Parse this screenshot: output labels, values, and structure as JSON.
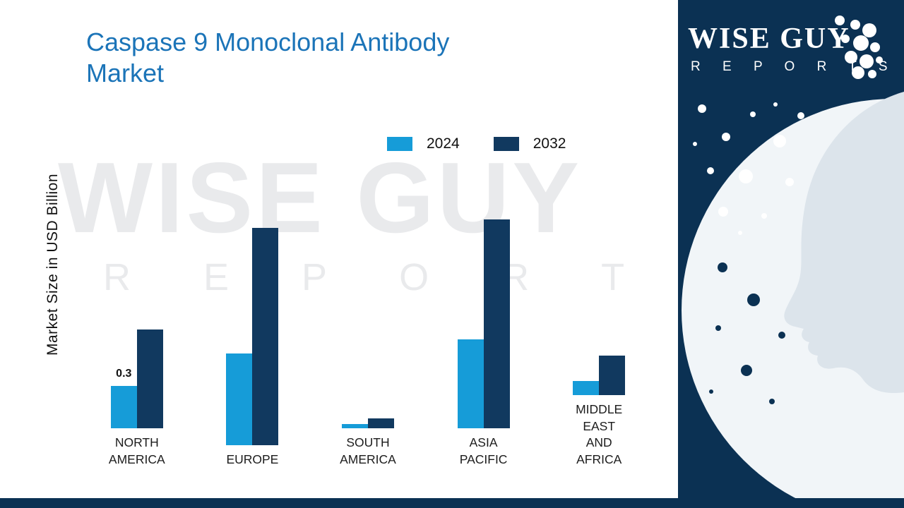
{
  "title": "Caspase 9 Monoclonal Antibody Market",
  "ylabel": "Market Size in USD Billion",
  "watermark": {
    "line1": "WISE GUY",
    "line2": "R E P O R T S"
  },
  "logo": {
    "line1": "WISE GUY",
    "line2": "R E P O R T S"
  },
  "colors": {
    "title_blue": "#1b74b8",
    "bar_2024": "#169cd8",
    "bar_2032": "#11395f",
    "brand_panel_navy": "#0b3153",
    "bottom_strip_navy": "#0b3153",
    "watermark_gray": "#e9eaec",
    "circle_light": "#f1f5f8",
    "face_profile": "#dce4eb"
  },
  "chart_data": {
    "type": "bar",
    "title": "Caspase 9 Monoclonal Antibody Market",
    "xlabel": "",
    "ylabel": "Market Size in USD Billion",
    "unit": "USD Billion",
    "categories": [
      "NORTH AMERICA",
      "EUROPE",
      "SOUTH AMERICA",
      "ASIA PACIFIC",
      "MIDDLE EAST AND AFRICA"
    ],
    "category_labels": [
      "NORTH\nAMERICA",
      "EUROPE",
      "SOUTH\nAMERICA",
      "ASIA\nPACIFIC",
      "MIDDLE\nEAST\nAND\nAFRICA"
    ],
    "series": [
      {
        "name": "2024",
        "color": "#169cd8",
        "values": [
          0.3,
          0.65,
          0.03,
          0.63,
          0.1
        ]
      },
      {
        "name": "2032",
        "color": "#11395f",
        "values": [
          0.7,
          1.54,
          0.07,
          1.48,
          0.28
        ]
      }
    ],
    "annotations": [
      {
        "category_index": 0,
        "series_index": 0,
        "text": "0.3"
      }
    ],
    "ylim": [
      0,
      1.7
    ],
    "grid": false,
    "legend_position": "top-center"
  }
}
